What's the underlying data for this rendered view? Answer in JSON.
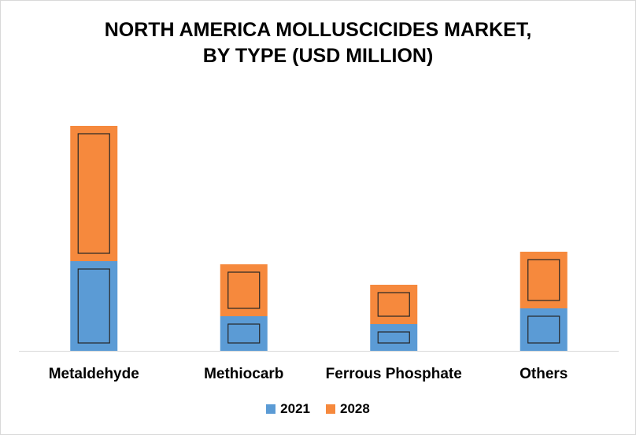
{
  "chart_data": {
    "type": "bar",
    "stacked": true,
    "title": "NORTH AMERICA MOLLUSCICIDES MARKET,\nBY TYPE (USD MILLION)",
    "categories": [
      "Metaldehyde",
      "Methiocarb",
      "Ferrous Phosphate",
      "Others"
    ],
    "series": [
      {
        "name": "2021",
        "values": [
          114,
          44,
          34,
          54
        ],
        "color": "#5b9bd5"
      },
      {
        "name": "2028",
        "values": [
          172,
          66,
          50,
          72
        ],
        "color": "#f6893d"
      }
    ],
    "xlabel": "",
    "ylabel": "",
    "ylim": [
      0,
      300
    ],
    "grid": false,
    "legend": "bottom"
  }
}
